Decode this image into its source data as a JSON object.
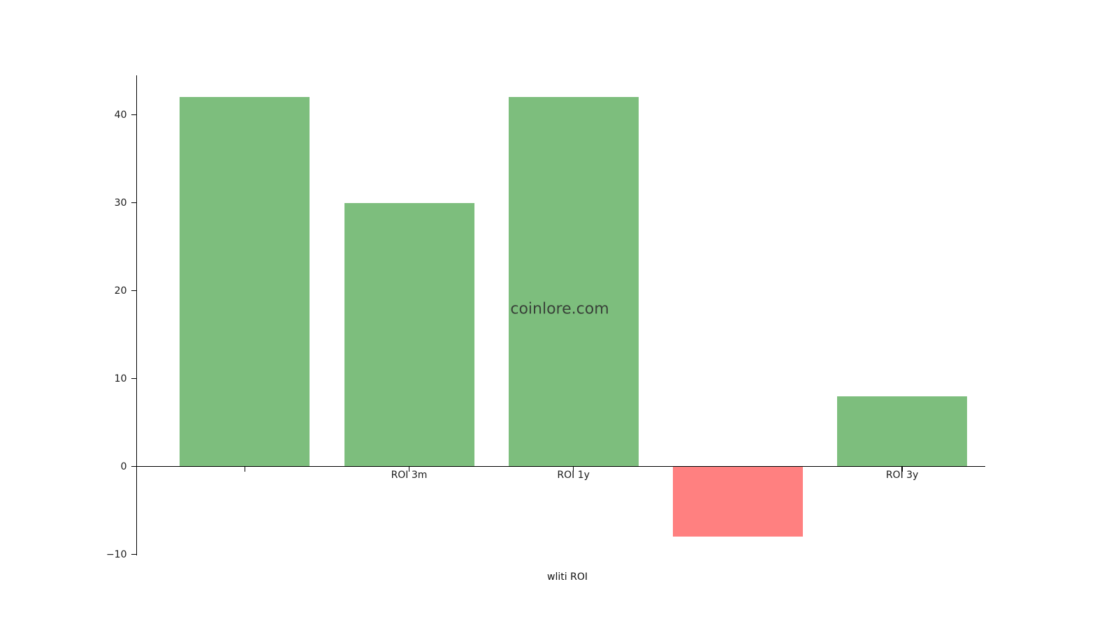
{
  "chart_data": {
    "type": "bar",
    "categories": [
      "",
      "ROI 3m",
      "ROI 1y",
      "",
      "ROI 3y"
    ],
    "values": [
      42,
      30,
      42,
      -8,
      8
    ],
    "bar_colors": [
      "#7dbe7d",
      "#7dbe7d",
      "#7dbe7d",
      "#ff8080",
      "#7dbe7d"
    ],
    "positive_color": "#7dbe7d",
    "negative_color": "#ff8080",
    "title": "",
    "xlabel": "wliti ROI",
    "ylabel": "",
    "yticks": [
      40,
      30,
      20,
      10,
      0,
      -10
    ],
    "ytick_labels": [
      "40",
      "30",
      "20",
      "10",
      "0",
      "−10"
    ],
    "ylim": [
      -12,
      44.5
    ],
    "grid": false,
    "legend": null,
    "watermark": "coinlore.com",
    "axis_color": "#000000",
    "tick_label_color": "#1a1a1a",
    "background_color": "#ffffff"
  }
}
